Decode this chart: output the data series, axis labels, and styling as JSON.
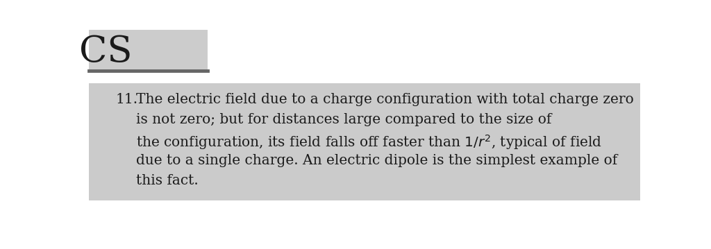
{
  "background_color": "#ffffff",
  "header_bg_color": "#cccccc",
  "header_line_color": "#666666",
  "main_box_color": "#cbcbcb",
  "main_box_bottom_color": "#d4d4d4",
  "header_text": "S",
  "header_text_color": "#1a1a1a",
  "header_font_size": 38,
  "number": "11.",
  "line1": "The electric field due to a charge configuration with total charge zero",
  "line2": "is not zero; but for distances large compared to the size of",
  "line3_pre": "the configuration, its field falls off faster than 1/",
  "line3_r": "r",
  "line3_sup": "2",
  "line3_post": ", typical of field",
  "line4": "due to a single charge. An electric dipole is the simplest example of",
  "line5": "this fact.",
  "text_color": "#1a1a1a",
  "font_size": 14.5
}
